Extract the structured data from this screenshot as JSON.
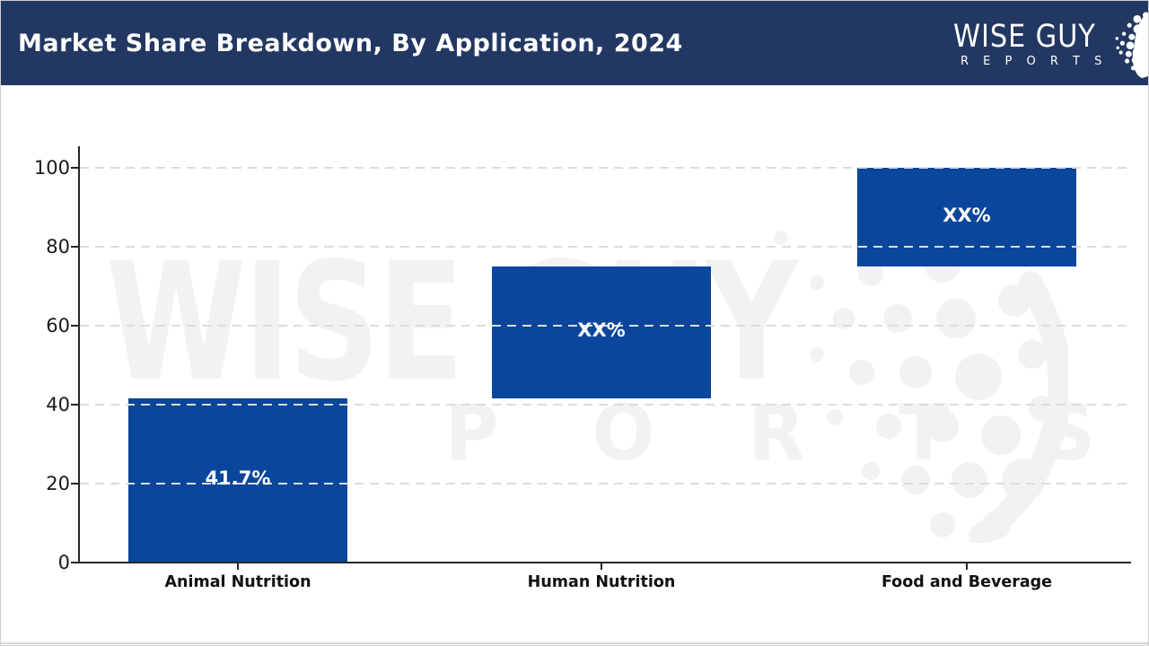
{
  "header": {
    "title": "Market Share Breakdown, By Application, 2024",
    "logo": {
      "line1": "WISE GUY",
      "line2": "R E P O R T S"
    }
  },
  "watermark": {
    "line1": "WISE GUY",
    "line2": "R E P O R T S"
  },
  "colors": {
    "header_bg": "#223761",
    "bar": "#0a469b",
    "gridline": "#dcdcdc",
    "axis": "#262626",
    "watermark": "#f2f2f4",
    "bar_label_text": "#ffffff",
    "title_text": "#ffffff"
  },
  "chart_data": {
    "type": "bar",
    "subtype": "waterfall",
    "title": "Market Share Breakdown, By Application, 2024",
    "categories": [
      "Animal Nutrition",
      "Human Nutrition",
      "Food and Beverage"
    ],
    "bars": [
      {
        "category": "Animal Nutrition",
        "label": "41.7%",
        "start": 0,
        "end": 41.7
      },
      {
        "category": "Human Nutrition",
        "label": "XX%",
        "start": 41.7,
        "end": 75
      },
      {
        "category": "Food and Beverage",
        "label": "XX%",
        "start": 75,
        "end": 100
      }
    ],
    "xlabel": "",
    "ylabel": "",
    "ylim": [
      0,
      100
    ],
    "yticks": [
      0,
      20,
      40,
      60,
      80,
      100
    ],
    "grid": "horizontal-dashed-over-bars",
    "legend": "none"
  }
}
